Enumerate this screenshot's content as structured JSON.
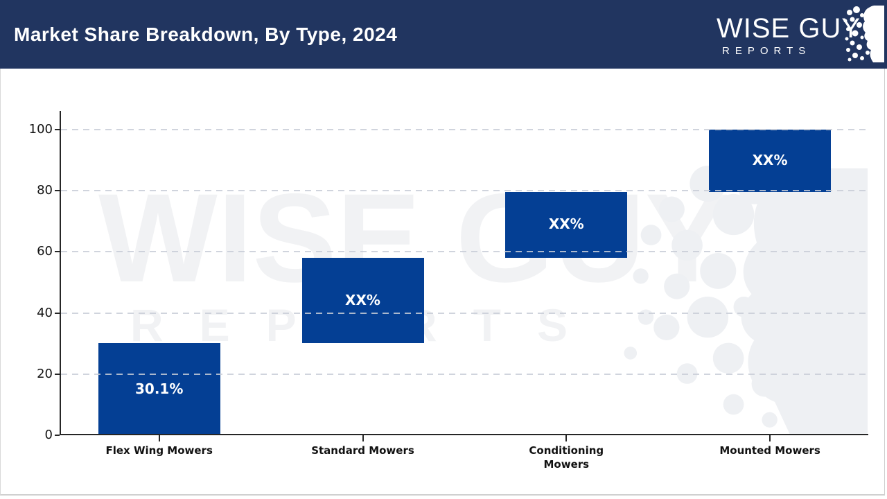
{
  "header": {
    "title": "Market Share Breakdown, By Type, 2024",
    "logo": {
      "line1": "WISE GUY",
      "line2": "REPORTS"
    }
  },
  "watermark": {
    "line1": "WISE GUY",
    "line2": "REPORTS"
  },
  "chart_data": {
    "type": "bar",
    "subtype": "waterfall",
    "title": "Market Share Breakdown, By Type, 2024",
    "categories": [
      "Flex Wing Mowers",
      "Standard Mowers",
      "Conditioning\nMowers",
      "Mounted Mowers"
    ],
    "bars": [
      {
        "category": "Flex Wing Mowers",
        "start": 0,
        "end": 30.1,
        "label": "30.1%"
      },
      {
        "category": "Standard Mowers",
        "start": 30.1,
        "end": 58,
        "label": "XX%"
      },
      {
        "category": "Conditioning Mowers",
        "start": 58,
        "end": 79.7,
        "label": "XX%"
      },
      {
        "category": "Mounted Mowers",
        "start": 79.7,
        "end": 100,
        "label": "XX%"
      }
    ],
    "y_ticks": [
      0,
      20,
      40,
      60,
      80,
      100
    ],
    "ylim": [
      0,
      106
    ],
    "xlabel": "",
    "ylabel": "",
    "grid": true,
    "grid_style": "dashed",
    "legend": false,
    "bar_color": "#043f94",
    "bar_label_color": "#ffffff",
    "header_color": "#213560"
  }
}
